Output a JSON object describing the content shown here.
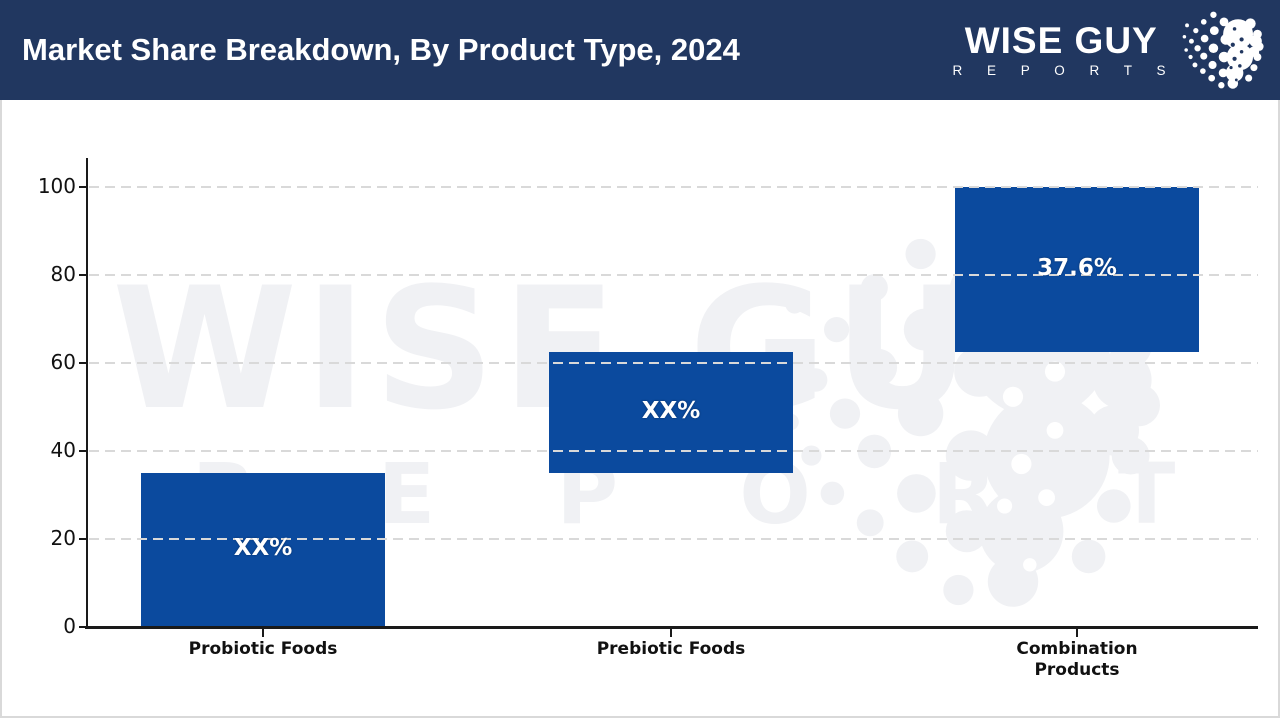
{
  "header": {
    "title": "Market Share Breakdown, By Product Type, 2024",
    "logo": {
      "line1": "WISE GUY",
      "line2": "R E P O R T S"
    }
  },
  "watermark": {
    "line1": "WISE GUY",
    "line2": "R E P O R T S"
  },
  "chart_data": {
    "type": "bar",
    "variant": "stacked-waterfall",
    "title": "Market Share Breakdown, By Product Type, 2024",
    "categories": [
      "Probiotic Foods",
      "Prebiotic Foods",
      "Combination Products"
    ],
    "segments": [
      {
        "category": "Probiotic Foods",
        "start": 0,
        "end": 35,
        "value": 35,
        "label": "XX%"
      },
      {
        "category": "Prebiotic Foods",
        "start": 35,
        "end": 62.4,
        "value": 27.4,
        "label": "XX%"
      },
      {
        "category": "Combination Products",
        "start": 62.4,
        "end": 100,
        "value": 37.6,
        "label": "37.6%"
      }
    ],
    "xlabel": "",
    "ylabel": "",
    "ylim": [
      0,
      100
    ],
    "yticks": [
      0,
      20,
      40,
      60,
      80,
      100
    ],
    "grid": {
      "horizontal": true,
      "style": "dashed",
      "color": "#d9d9d9",
      "above_bars": true
    },
    "legend": null,
    "bar_color": "#0b4a9e",
    "bar_label_color": "#ffffff",
    "axis_color": "#1a1a1a"
  },
  "colors": {
    "header_bg": "#213760",
    "page_bg": "#ffffff",
    "watermark": "#f0f1f4",
    "border_hairline": "#d9d9d9"
  }
}
